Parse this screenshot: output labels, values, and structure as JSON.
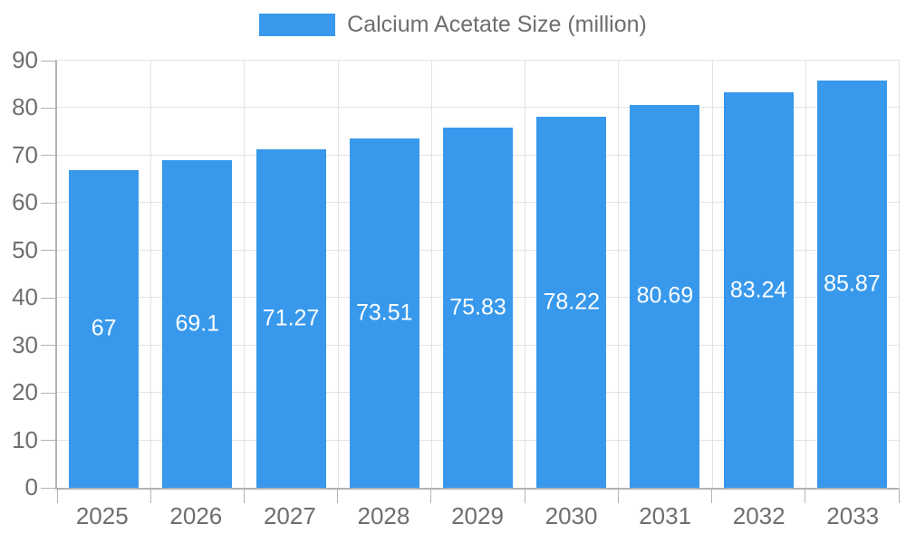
{
  "chart_data": {
    "type": "bar",
    "series_name": "Calcium Acetate Size (million)",
    "categories": [
      "2025",
      "2026",
      "2027",
      "2028",
      "2029",
      "2030",
      "2031",
      "2032",
      "2033"
    ],
    "values": [
      67,
      69.1,
      71.27,
      73.51,
      75.83,
      78.22,
      80.69,
      83.24,
      85.87
    ],
    "value_labels": [
      "67",
      "69.1",
      "71.27",
      "73.51",
      "75.83",
      "78.22",
      "80.69",
      "83.24",
      "85.87"
    ],
    "title": "",
    "xlabel": "",
    "ylabel": "",
    "ylim": [
      0,
      90
    ],
    "y_ticks": [
      0,
      10,
      20,
      30,
      40,
      50,
      60,
      70,
      80,
      90
    ],
    "grid": "on",
    "legend_position": "top",
    "bar_color": "#3899EC",
    "value_label_color": "#ffffff",
    "axis_text_color": "#6e6e6e",
    "grid_color": "#e3e3e3",
    "axis_line_color": "#b3b3b3"
  }
}
